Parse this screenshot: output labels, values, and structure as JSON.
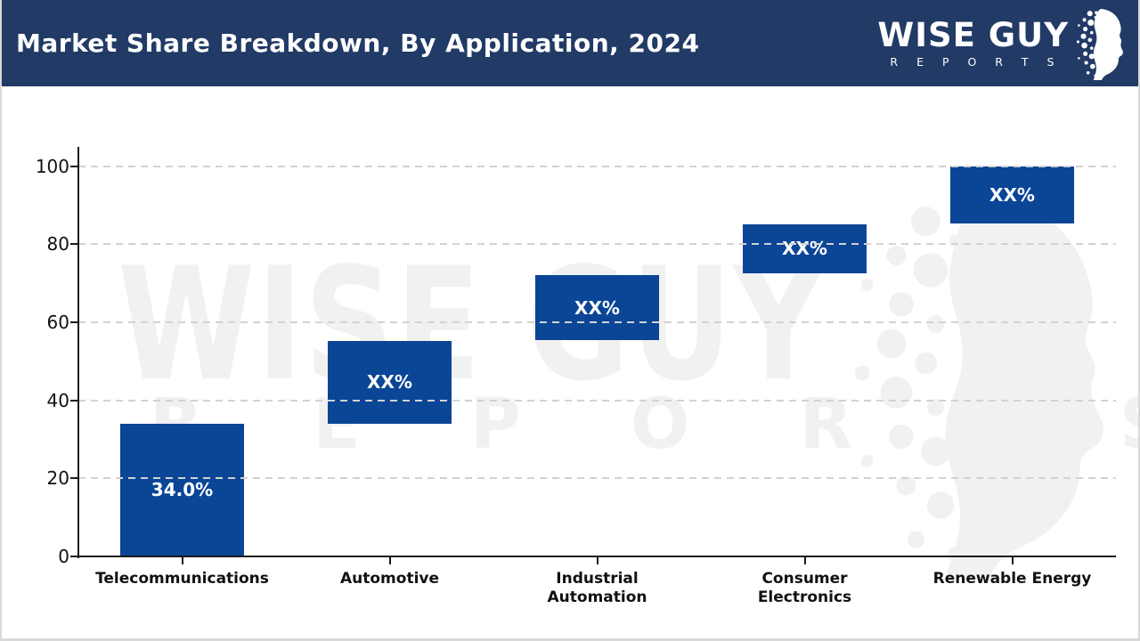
{
  "header": {
    "title": "Market Share Breakdown, By Application, 2024",
    "bg_color": "#213a66",
    "text_color": "#ffffff",
    "logo": {
      "line1": "WISE GUY",
      "line2": "R E P O R T S"
    }
  },
  "watermark": {
    "line1": "WISE GUY",
    "line2": "R E P O R T S"
  },
  "chart_data": {
    "type": "bar",
    "subtype": "waterfall",
    "title": "Market Share Breakdown, By Application, 2024",
    "categories": [
      "Telecommunications",
      "Automotive",
      "Industrial Automation",
      "Consumer Electronics",
      "Renewable Energy"
    ],
    "category_lines": [
      [
        "Telecommunications"
      ],
      [
        "Automotive"
      ],
      [
        "Industrial",
        "Automation"
      ],
      [
        "Consumer",
        "Electronics"
      ],
      [
        "Renewable Energy"
      ]
    ],
    "segments": [
      {
        "category": "Telecommunications",
        "label": "34.0%",
        "start": 0,
        "end": 34
      },
      {
        "category": "Automotive",
        "label": "XX%",
        "start": 34,
        "end": 55.2
      },
      {
        "category": "Industrial Automation",
        "label": "XX%",
        "start": 55.3,
        "end": 72.1
      },
      {
        "category": "Consumer Electronics",
        "label": "XX%",
        "start": 72.6,
        "end": 85.1
      },
      {
        "category": "Renewable Energy",
        "label": "XX%",
        "start": 85.3,
        "end": 100
      }
    ],
    "xlabel": "",
    "ylabel": "",
    "ylim": [
      0,
      105
    ],
    "yticks": [
      0,
      20,
      40,
      60,
      80,
      100
    ],
    "grid": true,
    "legend": false,
    "bar_color": "#0b4596",
    "bar_label_color": "#ffffff",
    "grid_color": "#d2d2d2",
    "axis_color": "#1a1a1a"
  }
}
